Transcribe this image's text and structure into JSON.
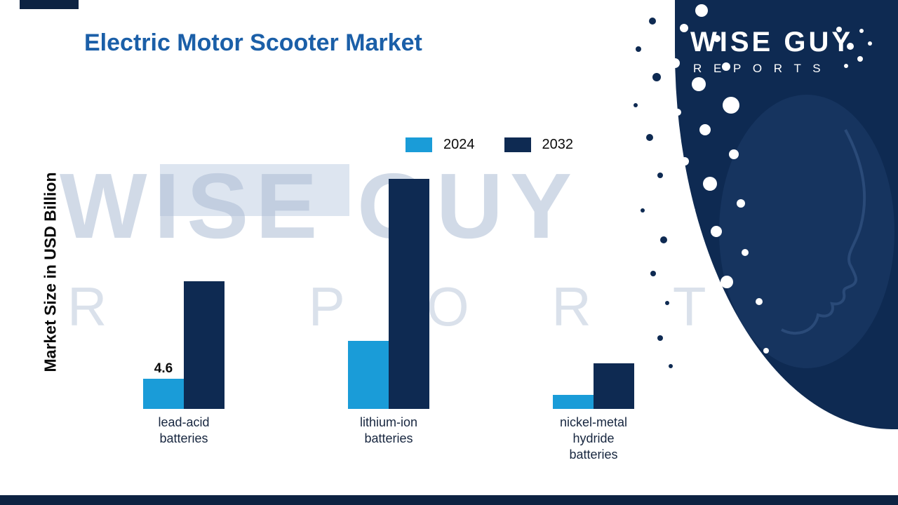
{
  "title": "Electric Motor Scooter Market",
  "logo": {
    "line1": "WISE GUY",
    "line2": "R E P O R T S"
  },
  "watermark": {
    "line1": "WISE GUY",
    "line2": "R E P O R T S"
  },
  "colors": {
    "accent_navy": "#0e2a52",
    "accent_blue": "#1a9cd8",
    "title_blue": "#1b5fa8",
    "strip_navy": "#0d2342"
  },
  "chart_data": {
    "type": "bar",
    "title": "Electric Motor Scooter Market",
    "categories": [
      "lead-acid batteries",
      "lithium-ion batteries",
      "nickel-metal hydride batteries"
    ],
    "series": [
      {
        "name": "2024",
        "color": "#1a9cd8",
        "values": [
          4.6,
          10.4,
          2.1
        ],
        "labels": [
          "4.6",
          "",
          ""
        ]
      },
      {
        "name": "2032",
        "color": "#0e2a52",
        "values": [
          19.6,
          35.3,
          7.0
        ],
        "labels": [
          "",
          "",
          ""
        ]
      }
    ],
    "xlabel": "",
    "ylabel": "Market Size in USD Billion",
    "ylim": [
      0,
      40
    ],
    "grid": false,
    "legend_position": "top-center",
    "value_labels_visible": [
      "4.6 on lead-acid batteries 2024 bar"
    ]
  }
}
